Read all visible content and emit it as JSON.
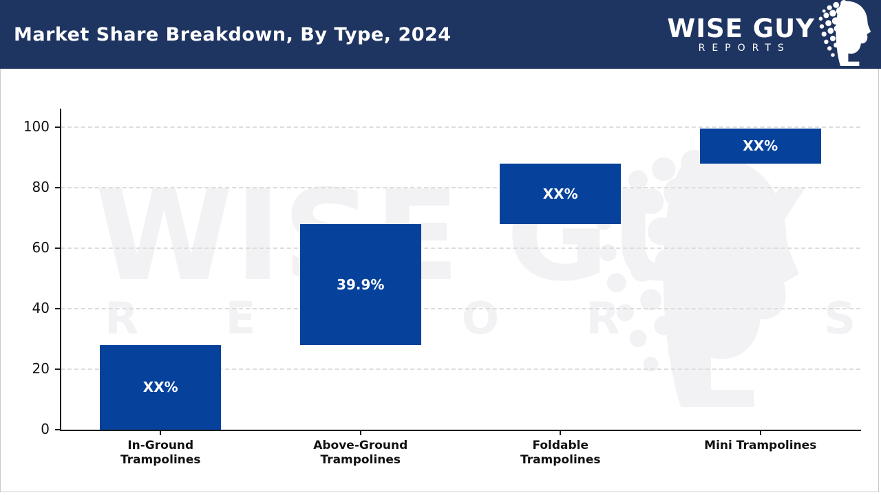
{
  "header": {
    "title": "Market Share Breakdown, By Type, 2024",
    "bg_color": "#1f3561",
    "logo": {
      "name": "WISE GUY",
      "sub": "REPORTS"
    }
  },
  "watermark": {
    "line1": "WISE GUY",
    "line2": "R E P O R T S"
  },
  "chart_data": {
    "type": "bar",
    "subtype": "floating-waterfall",
    "title": "Market Share Breakdown, By Type, 2024",
    "categories": [
      "In-Ground\nTrampolines",
      "Above-Ground\nTrampolines",
      "Foldable\nTrampolines",
      "Mini Trampolines"
    ],
    "segments": [
      {
        "category": "In-Ground Trampolines",
        "start": 0,
        "end": 28,
        "label": "XX%"
      },
      {
        "category": "Above-Ground Trampolines",
        "start": 28,
        "end": 67.9,
        "label": "39.9%"
      },
      {
        "category": "Foldable Trampolines",
        "start": 67.9,
        "end": 87.9,
        "label": "XX%"
      },
      {
        "category": "Mini Trampolines",
        "start": 87.9,
        "end": 99.6,
        "label": "XX%"
      }
    ],
    "yticks": [
      0,
      20,
      40,
      60,
      80,
      100
    ],
    "ylim": [
      0,
      106
    ],
    "xlabel": "",
    "ylabel": "",
    "bar_color": "#06429b",
    "grid": {
      "horizontal": true,
      "style": "dashed",
      "color": "#dcdcdc"
    },
    "legend": "none"
  }
}
